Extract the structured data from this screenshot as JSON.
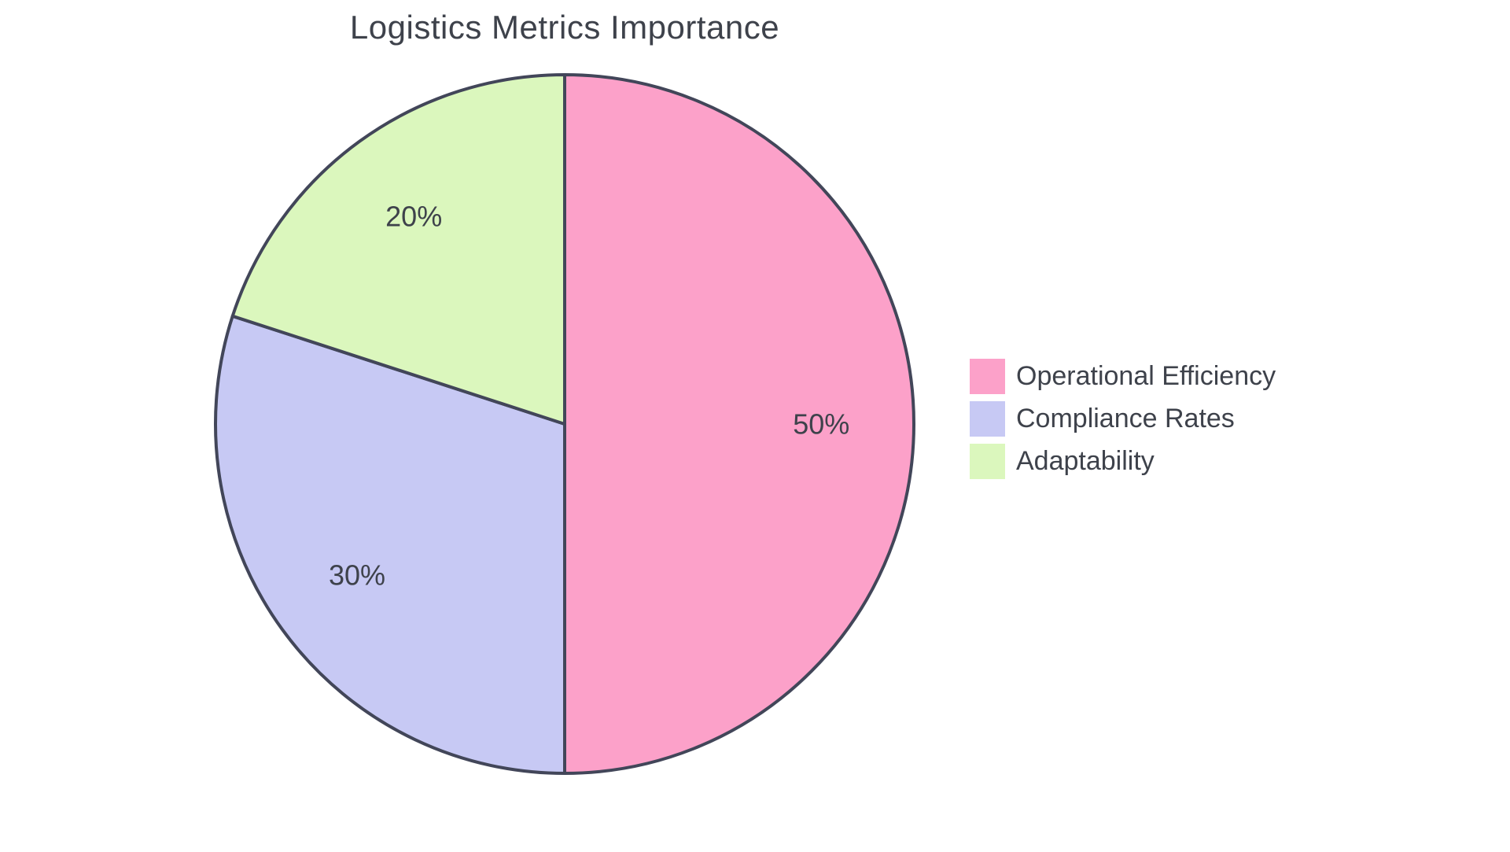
{
  "chart_data": {
    "type": "pie",
    "title": "Logistics Metrics Importance",
    "labels": [
      "Operational Efficiency",
      "Compliance Rates",
      "Adaptability"
    ],
    "values": [
      50,
      30,
      20
    ],
    "slice_labels": [
      "50%",
      "30%",
      "20%"
    ],
    "colors": [
      "#FCA1C9",
      "#C7C9F4",
      "#DBF7BD"
    ],
    "stroke_color": "#424659",
    "text_color": "#3E424B",
    "legend_position": "right",
    "start_angle": "top",
    "direction": "clockwise",
    "background": "#FFFFFF"
  }
}
